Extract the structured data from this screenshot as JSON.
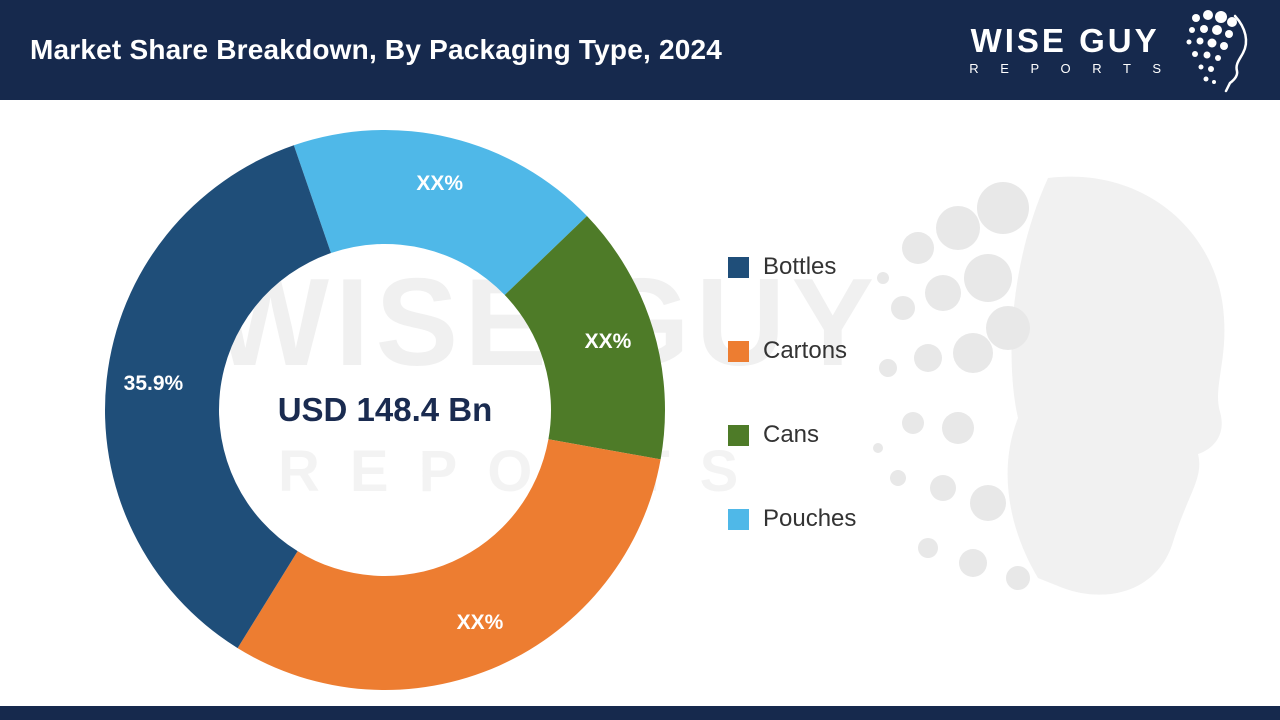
{
  "header": {
    "title": "Market Share Breakdown, By Packaging Type, 2024",
    "logo": {
      "line1": "WISE GUY",
      "line2": "R E P O R T S"
    }
  },
  "chart_data": {
    "type": "pie",
    "subtype": "donut",
    "title": "Market Share Breakdown, By Packaging Type, 2024",
    "center_label": "USD 148.4 Bn",
    "rotation_deg": 341,
    "legend_position": "right",
    "segments": [
      {
        "name": "Pouches",
        "display_label": "XX%",
        "value_pct_est": 18.1,
        "color": "#4fb8e8"
      },
      {
        "name": "Cans",
        "display_label": "XX%",
        "value_pct_est": 15.0,
        "color": "#4e7b28"
      },
      {
        "name": "Cartons",
        "display_label": "XX%",
        "value_pct_est": 31.0,
        "color": "#ed7d31"
      },
      {
        "name": "Bottles",
        "display_label": "35.9%",
        "value_pct_est": 35.9,
        "color": "#1f4e79"
      }
    ]
  },
  "legend": {
    "items": [
      {
        "label": "Bottles",
        "color": "#1f4e79"
      },
      {
        "label": "Cartons",
        "color": "#ed7d31"
      },
      {
        "label": "Cans",
        "color": "#4e7b28"
      },
      {
        "label": "Pouches",
        "color": "#4fb8e8"
      }
    ]
  },
  "watermark": {
    "line1": "WISE GUY",
    "line2": "REPORTS"
  },
  "colors": {
    "header_bg": "#16294d",
    "footer_bg": "#16294d",
    "center_text": "#1a2b50"
  }
}
